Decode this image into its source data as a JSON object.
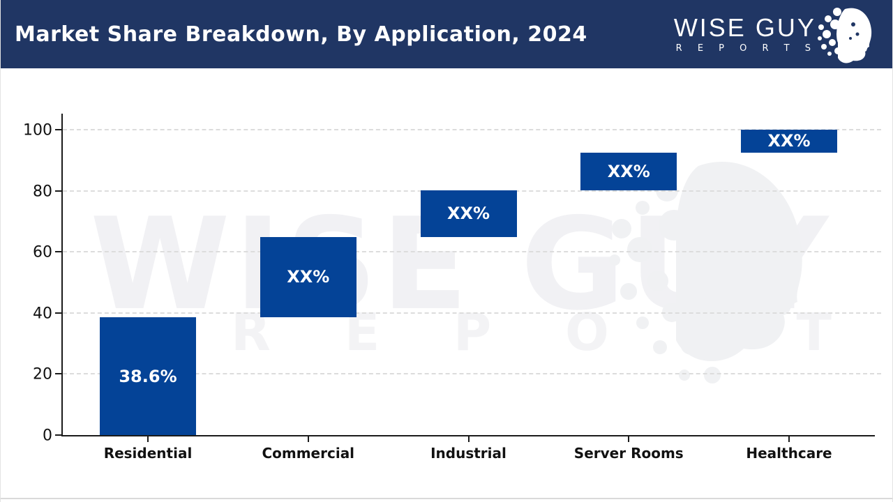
{
  "header": {
    "title": "Market Share Breakdown, By Application, 2024",
    "bg_color": "#203664",
    "logo": {
      "line1": "WISE GUY",
      "line2": "R E P O R T S"
    }
  },
  "watermark": {
    "line1": "WISE GUY",
    "line2": "R E P O R T S"
  },
  "chart_data": {
    "type": "bar",
    "subtype": "waterfall",
    "title": "Market Share Breakdown, By Application, 2024",
    "xlabel": "",
    "ylabel": "",
    "ylim": [
      0,
      105
    ],
    "yticks": [
      0,
      20,
      40,
      60,
      80,
      100
    ],
    "grid": "horizontal-dashed",
    "legend": "none",
    "bar_color": "#044397",
    "categories": [
      "Residential",
      "Commercial",
      "Industrial",
      "Server Rooms",
      "Healthcare"
    ],
    "segments": [
      {
        "category": "Residential",
        "start": 0,
        "end": 38.6,
        "value": 38.6,
        "label": "38.6%"
      },
      {
        "category": "Commercial",
        "start": 38.6,
        "end": 64.9,
        "value": 26.3,
        "label": "XX%"
      },
      {
        "category": "Industrial",
        "start": 64.9,
        "end": 80.3,
        "value": 15.4,
        "label": "XX%"
      },
      {
        "category": "Server Rooms",
        "start": 80.3,
        "end": 92.6,
        "value": 12.3,
        "label": "XX%"
      },
      {
        "category": "Healthcare",
        "start": 92.6,
        "end": 100,
        "value": 7.4,
        "label": "XX%"
      }
    ],
    "note": "Values other than Residential are masked as XX% in the source image"
  }
}
